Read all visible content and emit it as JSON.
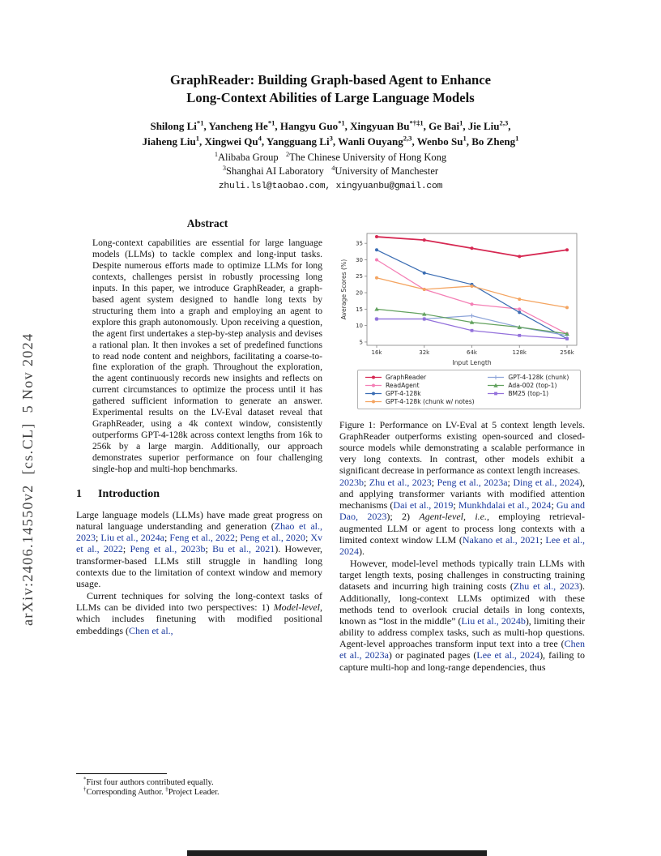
{
  "colors": {
    "citation": "#1b3a9e"
  },
  "arxiv_label": "arXiv:2406.14550v2  [cs.CL]  5 Nov 2024",
  "title": {
    "line1": "GraphReader: Building Graph-based Agent to Enhance",
    "line2": "Long-Context Abilities of Large Language Models"
  },
  "authors": {
    "line1": "Shilong Li^^*1^^, Yancheng He^^*1^^, Hangyu Guo^^*1^^, Xingyuan Bu^^*†‡1^^, Ge Bai^^1^^, Jie Liu^^2,3^^,",
    "line2": "Jiaheng Liu^^1^^, Xingwei Qu^^4^^, Yangguang Li^^3^^, Wanli Ouyang^^2,3^^, Wenbo Su^^1^^, Bo Zheng^^1^^"
  },
  "affiliations": {
    "line1": "^^1^^Alibaba Group   ^^2^^The Chinese University of Hong Kong",
    "line2": "^^3^^Shanghai AI Laboratory   ^^4^^University of Manchester"
  },
  "emails": "zhuli.lsl@taobao.com, xingyuanbu@gmail.com",
  "abstract": {
    "heading": "Abstract",
    "text": "Long-context capabilities are essential for large language models (LLMs) to tackle complex and long-input tasks. Despite numerous efforts made to optimize LLMs for long contexts, challenges persist in robustly processing long inputs. In this paper, we introduce GraphReader, a graph-based agent system designed to handle long texts by structuring them into a graph and employing an agent to explore this graph autonomously. Upon receiving a question, the agent first undertakes a step-by-step analysis and devises a rational plan. It then invokes a set of predefined functions to read node content and neighbors, facilitating a coarse-to-fine exploration of the graph. Throughout the exploration, the agent continuously records new insights and reflects on current circumstances to optimize the process until it has gathered sufficient information to generate an answer. Experimental results on the LV-Eval dataset reveal that GraphReader, using a 4k context window, consistently outperforms GPT-4-128k across context lengths from 16k to 256k by a large margin. Additionally, our approach demonstrates superior performance on four challenging single-hop and multi-hop benchmarks."
  },
  "figure": {
    "caption": "Figure 1: Performance on LV-Eval at 5 context length levels. GraphReader outperforms existing open-sourced and closed-source models while demonstrating a scalable performance in very long contexts. In contrast, other models exhibit a significant decrease in performance as context length increases."
  },
  "intro": {
    "number": "1",
    "title": "Introduction",
    "p1": "Large language models (LLMs) have made great progress on natural language understanding and generation ([[Zhao et al., 2023]]; [[Liu et al., 2024a]]; [[Feng et al., 2022]]; [[Peng et al., 2020]]; [[Xv et al., 2022]]; [[Peng et al., 2023b]]; [[Bu et al., 2021]]). However, transformer-based LLMs still struggle in handling long contexts due to the limitation of context window and memory usage.",
    "p2": "Current techniques for solving the long-context tasks of LLMs can be divided into two perspectives: 1) {{Model-level}}, which includes finetuning with modified positional embeddings ([[Chen et al.,]]"
  },
  "right": {
    "p1": "[[2023b]]; [[Zhu et al., 2023]]; [[Peng et al., 2023a]]; [[Ding et al., 2024]]), and applying transformer variants with modified attention mechanisms ([[Dai et al., 2019]]; [[Munkhdalai et al., 2024]]; [[Gu and Dao, 2023]]); 2) {{Agent-level}}, {{i.e.}}, employing retrieval-augmented LLM or agent to process long contexts with a limited context window LLM ([[Nakano et al., 2021]]; [[Lee et al., 2024]]).",
    "p2": "However, model-level methods typically train LLMs with target length texts, posing challenges in constructing training datasets and incurring high training costs ([[Zhu et al., 2023]]). Additionally, long-context LLMs optimized with these methods tend to overlook crucial details in long contexts, known as “lost in the middle” ([[Liu et al., 2024b]]), limiting their ability to address complex tasks, such as multi-hop questions. Agent-level approaches transform input text into a tree ([[Chen et al., 2023a]]) or paginated pages ([[Lee et al., 2024]]), failing to capture multi-hop and long-range dependencies, thus"
  },
  "footnotes": {
    "line1": "^^*^^First four authors contributed equally.",
    "line2": "^^†^^Corresponding Author. ^^‡^^Project Leader."
  },
  "chart_data": {
    "type": "line",
    "title": "",
    "xlabel": "Input Length",
    "ylabel": "Average Scores (%)",
    "categories": [
      "16k",
      "32k",
      "64k",
      "128k",
      "256k"
    ],
    "ylim": [
      4,
      38
    ],
    "yticks": [
      5,
      10,
      15,
      20,
      25,
      30,
      35
    ],
    "grid": false,
    "legend_position": "below",
    "series": [
      {
        "name": "GraphReader",
        "color": "#d62852",
        "marker": "o",
        "width": 1.8,
        "values": [
          37,
          36,
          33.5,
          31,
          33
        ]
      },
      {
        "name": "ReadAgent",
        "color": "#f47fb5",
        "marker": "o",
        "values": [
          30,
          21,
          16.5,
          15,
          7.5
        ]
      },
      {
        "name": "GPT-4-128k",
        "color": "#3b6db3",
        "marker": "o",
        "values": [
          33,
          26,
          22.5,
          14,
          6
        ]
      },
      {
        "name": "GPT-4-128k (chunk w/ notes)",
        "color": "#f4a460",
        "marker": "o",
        "values": [
          24.5,
          21,
          22,
          18,
          15.5
        ]
      },
      {
        "name": "GPT-4-128k (chunk)",
        "color": "#8da4d9",
        "marker": "+",
        "values": [
          12,
          12,
          13,
          9.5,
          7
        ]
      },
      {
        "name": "Ada-002 (top-1)",
        "color": "#62a15e",
        "marker": "^",
        "values": [
          15,
          13.5,
          11,
          9.5,
          7.5
        ]
      },
      {
        "name": "BM25 (top-1)",
        "color": "#9370db",
        "marker": "s",
        "values": [
          12,
          12,
          8.5,
          7,
          6
        ]
      }
    ]
  }
}
